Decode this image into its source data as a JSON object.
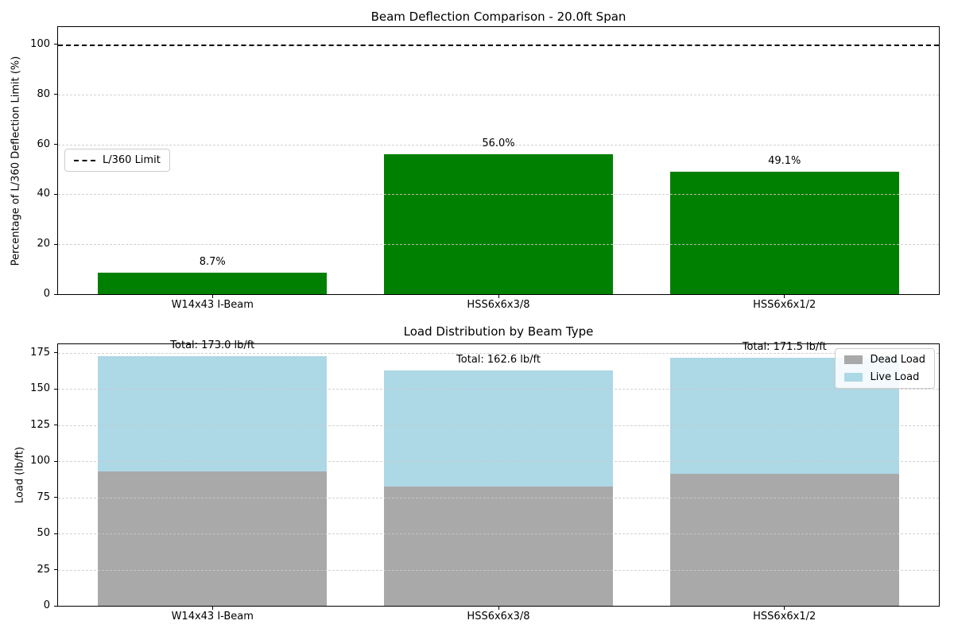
{
  "figure": {
    "background": "#ffffff"
  },
  "chart_data": [
    {
      "type": "bar",
      "title": "Beam Deflection Comparison - 20.0ft Span",
      "ylabel": "Percentage of L/360 Deflection Limit (%)",
      "categories": [
        "W14x43 I-Beam",
        "HSS6x6x3/8",
        "HSS6x6x1/2"
      ],
      "values": [
        8.7,
        56.0,
        49.1
      ],
      "bar_labels": [
        "8.7%",
        "56.0%",
        "49.1%"
      ],
      "bar_color": "#008000",
      "ylim": [
        0,
        107
      ],
      "yticks": [
        0,
        20,
        40,
        60,
        80,
        100
      ],
      "grid": true,
      "limit_line": {
        "value": 100,
        "label": "L/360 Limit",
        "color": "#000000",
        "style": "dashed"
      },
      "legend": {
        "position": "center-left",
        "entries": [
          {
            "label": "L/360 Limit",
            "swatch": "dashed-line",
            "color": "#000000"
          }
        ]
      }
    },
    {
      "type": "stacked-bar",
      "title": "Load Distribution by Beam Type",
      "ylabel": "Load (lb/ft)",
      "categories": [
        "W14x43 I-Beam",
        "HSS6x6x3/8",
        "HSS6x6x1/2"
      ],
      "series": [
        {
          "name": "Dead Load",
          "color": "#a9a9a9",
          "values": [
            93.0,
            82.6,
            91.5
          ]
        },
        {
          "name": "Live Load",
          "color": "#add8e6",
          "values": [
            80.0,
            80.0,
            80.0
          ]
        }
      ],
      "totals": [
        173.0,
        162.6,
        171.5
      ],
      "total_labels": [
        "Total: 173.0 lb/ft",
        "Total: 162.6 lb/ft",
        "Total: 171.5 lb/ft"
      ],
      "ylim": [
        0,
        181
      ],
      "yticks": [
        0,
        25,
        50,
        75,
        100,
        125,
        150,
        175
      ],
      "grid": true,
      "legend": {
        "position": "upper-right",
        "entries": [
          {
            "label": "Dead Load",
            "swatch": "patch",
            "color": "#a9a9a9"
          },
          {
            "label": "Live Load",
            "swatch": "patch",
            "color": "#add8e6"
          }
        ]
      }
    }
  ]
}
